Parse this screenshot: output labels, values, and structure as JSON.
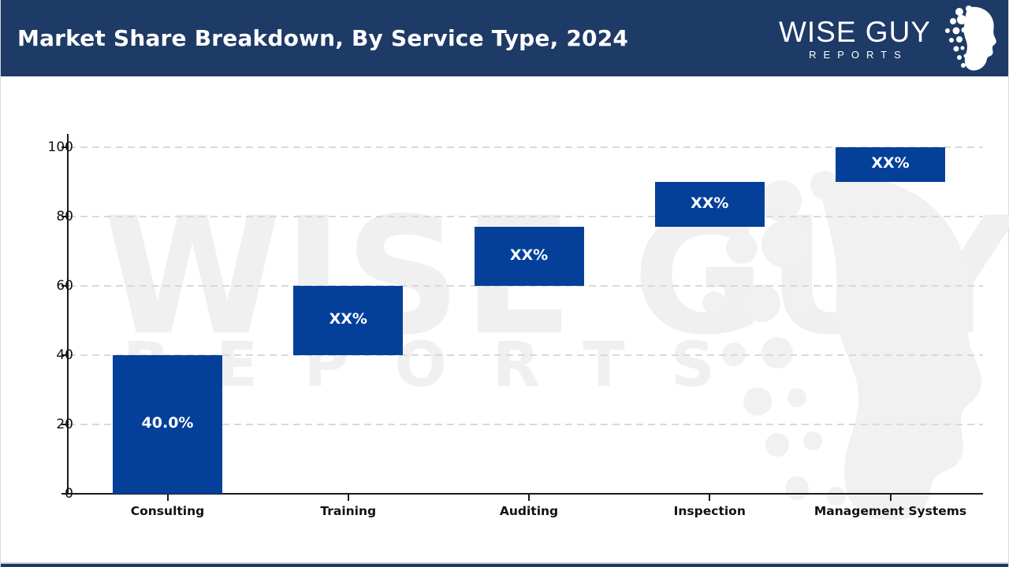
{
  "header": {
    "title": "Market Share Breakdown, By Service Type, 2024",
    "bg_color": "#1e3a66",
    "logo": {
      "line1": "WISE GUY",
      "line2": "REPORTS"
    }
  },
  "watermark": {
    "line1": "WISE GUY",
    "line2": "REPORTS"
  },
  "chart_data": {
    "type": "bar",
    "subtype": "waterfall",
    "title": "Market Share Breakdown, By Service Type, 2024",
    "categories": [
      "Consulting",
      "Training",
      "Auditing",
      "Inspection",
      "Management Systems"
    ],
    "starts": [
      0,
      40,
      60,
      77,
      90
    ],
    "values": [
      40,
      20,
      17,
      13,
      10
    ],
    "bar_labels": [
      "40.0%",
      "XX%",
      "XX%",
      "XX%",
      "XX%"
    ],
    "yticks": [
      0,
      20,
      40,
      60,
      80,
      100
    ],
    "ylim": [
      0,
      100
    ],
    "xlabel": "",
    "ylabel": "",
    "grid": "horizontal-dashed",
    "bar_color": "#04409a",
    "grid_color": "#d9d9d9"
  }
}
